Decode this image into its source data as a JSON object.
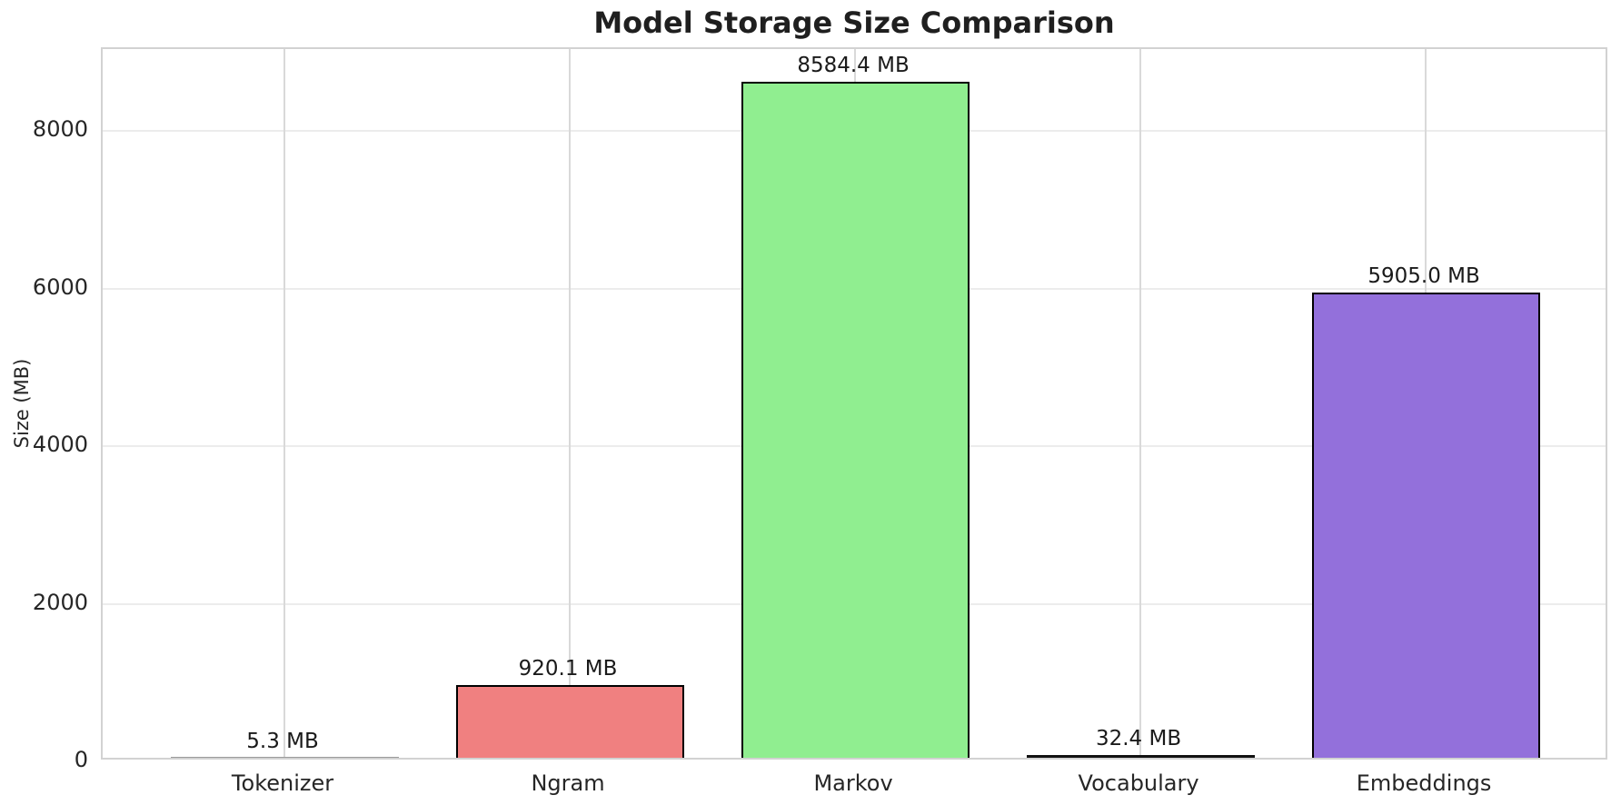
{
  "chart_data": {
    "type": "bar",
    "title": "Model Storage Size Comparison",
    "xlabel": "",
    "ylabel": "Size (MB)",
    "categories": [
      "Tokenizer",
      "Ngram",
      "Markov",
      "Vocabulary",
      "Embeddings"
    ],
    "values": [
      5.3,
      920.1,
      8584.4,
      32.4,
      5905.0
    ],
    "bar_labels": [
      "5.3 MB",
      "920.1 MB",
      "8584.4 MB",
      "32.4 MB",
      "5905.0 MB"
    ],
    "bar_colors": [
      "#87CEEB",
      "#F08080",
      "#90EE90",
      "#FFD700",
      "#9370DB"
    ],
    "bar_edge_color": "#000000",
    "yticks": [
      0,
      2000,
      4000,
      6000,
      8000
    ],
    "ylim": [
      0,
      9040
    ],
    "xlim": [
      -0.637,
      4.643
    ],
    "bar_width_units": 0.8,
    "grid": true,
    "legend": false,
    "background_color": "#ffffff"
  }
}
